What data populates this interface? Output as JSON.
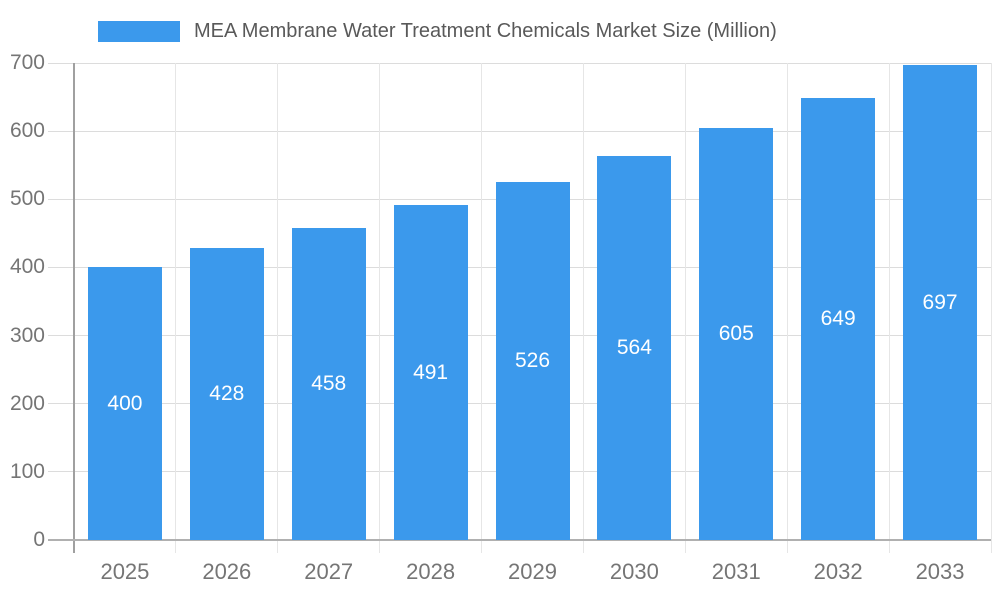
{
  "legend": {
    "label": "MEA Membrane Water Treatment Chemicals Market Size (Million)",
    "swatch_color": "#3B99EC"
  },
  "chart_data": {
    "type": "bar",
    "title": "MEA Membrane Water Treatment Chemicals Market Size (Million)",
    "categories": [
      "2025",
      "2026",
      "2027",
      "2028",
      "2029",
      "2030",
      "2031",
      "2032",
      "2033"
    ],
    "values": [
      400,
      428,
      458,
      491,
      526,
      564,
      605,
      649,
      697
    ],
    "xlabel": "",
    "ylabel": "",
    "ylim": [
      0,
      700
    ],
    "yticks": [
      0,
      100,
      200,
      300,
      400,
      500,
      600,
      700
    ],
    "grid": true,
    "legend_position": "top",
    "bar_color": "#3B99EC",
    "bar_label_color": "#ffffff",
    "tick_label_color": "#757575",
    "grid_color": "#dcdcdc",
    "axis_color": "#a8a8a8",
    "background_color": "#ffffff"
  }
}
